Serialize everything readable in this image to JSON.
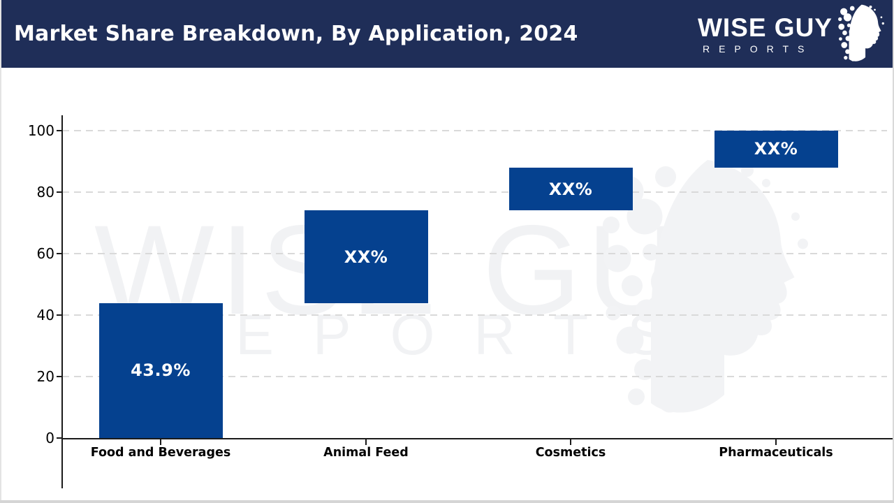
{
  "header": {
    "title": "Market Share Breakdown, By Application, 2024",
    "logo": {
      "line1": "WISE GUY",
      "line2": "REPORTS"
    }
  },
  "watermark": {
    "line1": "WISE GUY",
    "line2": "REPORTS"
  },
  "colors": {
    "header_bg": "#1F2E58",
    "bar_fill": "#05418F",
    "bar_label": "#FFFFFF",
    "axis": "#1A1A1A",
    "gridline": "#D9D9D9",
    "watermark": "#F1F2F4",
    "tick_text": "#000000"
  },
  "chart_data": {
    "type": "bar",
    "subtype": "waterfall",
    "title": "Market Share Breakdown, By Application, 2024",
    "xlabel": "",
    "ylabel": "",
    "ylim": [
      0,
      105
    ],
    "yticks": [
      0,
      20,
      40,
      60,
      80,
      100
    ],
    "grid": "horizontal dashed",
    "legend": "none",
    "categories": [
      "Food and Beverages",
      "Animal Feed",
      "Cosmetics",
      "Pharmaceuticals"
    ],
    "segments": [
      {
        "category": "Food and Beverages",
        "start": 0,
        "end": 43.9,
        "label": "43.9%"
      },
      {
        "category": "Animal Feed",
        "start": 43.9,
        "end": 74,
        "label": "XX%"
      },
      {
        "category": "Cosmetics",
        "start": 74,
        "end": 88,
        "label": "XX%"
      },
      {
        "category": "Pharmaceuticals",
        "start": 88,
        "end": 100,
        "label": "XX%"
      }
    ]
  }
}
